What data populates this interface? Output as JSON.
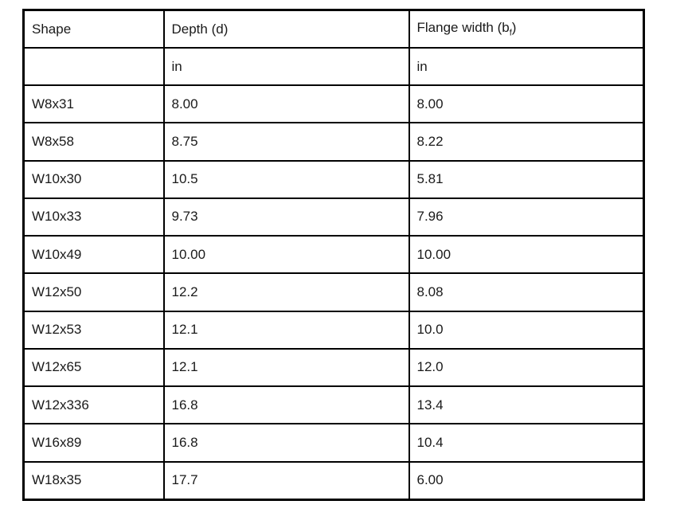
{
  "header": {
    "shape": "Shape",
    "depth": "Depth (d)",
    "flange_prefix": "Flange width (b",
    "flange_sub": "f",
    "flange_suffix": ")"
  },
  "units": {
    "shape": "",
    "depth": "in",
    "flange": "in"
  },
  "rows": [
    {
      "shape": "W8x31",
      "depth": "8.00",
      "flange": "8.00"
    },
    {
      "shape": "W8x58",
      "depth": "8.75",
      "flange": "8.22"
    },
    {
      "shape": "W10x30",
      "depth": "10.5",
      "flange": "5.81"
    },
    {
      "shape": "W10x33",
      "depth": "9.73",
      "flange": "7.96"
    },
    {
      "shape": "W10x49",
      "depth": "10.00",
      "flange": "10.00"
    },
    {
      "shape": "W12x50",
      "depth": "12.2",
      "flange": "8.08"
    },
    {
      "shape": "W12x53",
      "depth": "12.1",
      "flange": "10.0"
    },
    {
      "shape": "W12x65",
      "depth": "12.1",
      "flange": "12.0"
    },
    {
      "shape": "W12x336",
      "depth": "16.8",
      "flange": "13.4"
    },
    {
      "shape": "W16x89",
      "depth": "16.8",
      "flange": "10.4"
    },
    {
      "shape": "W18x35",
      "depth": "17.7",
      "flange": "6.00"
    }
  ],
  "colors": {
    "border": "#000000",
    "text": "#1a1a1a",
    "background": "#ffffff"
  }
}
